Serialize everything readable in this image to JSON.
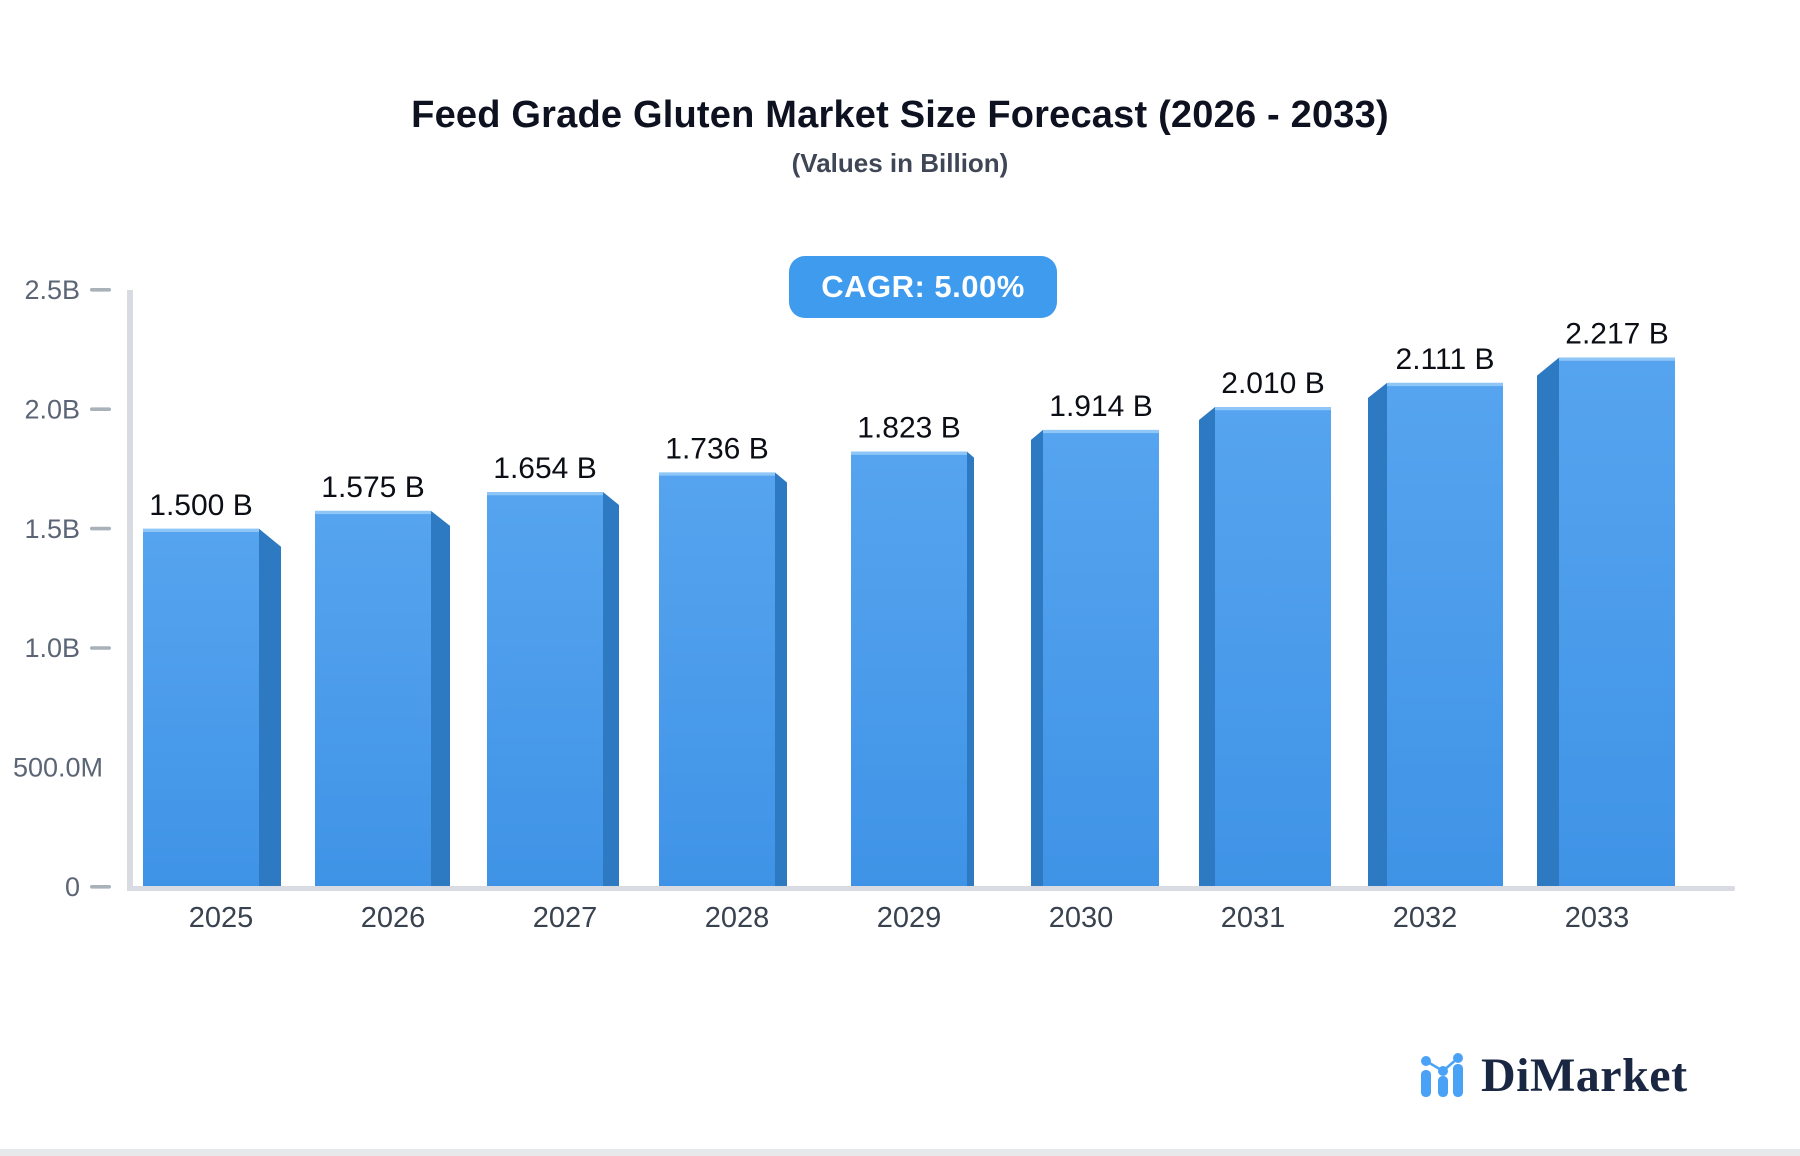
{
  "title": "Feed Grade Gluten Market Size Forecast (2026 - 2033)",
  "subtitle": "(Values in Billion)",
  "badge": {
    "label": "CAGR: 5.00%",
    "bg": "#3f9bee"
  },
  "chart_data": {
    "type": "bar",
    "title": "Feed Grade Gluten Market Size Forecast (2026 - 2033)",
    "subtitle": "(Values in Billion)",
    "categories": [
      "2025",
      "2026",
      "2027",
      "2028",
      "2029",
      "2030",
      "2031",
      "2032",
      "2033"
    ],
    "values": [
      1.5,
      1.575,
      1.654,
      1.736,
      1.823,
      1.914,
      2.01,
      2.111,
      2.217
    ],
    "value_labels": [
      "1.500 B",
      "1.575 B",
      "1.654 B",
      "1.736 B",
      "1.823 B",
      "1.914 B",
      "2.010 B",
      "2.111 B",
      "2.217 B"
    ],
    "unit": "Billion",
    "xlabel": "",
    "ylabel": "",
    "ylim": [
      0,
      2.5
    ],
    "yticks": [
      {
        "label": "0",
        "value": 0.0
      },
      {
        "label": "500.0M",
        "value": 0.5
      },
      {
        "label": "1.0B",
        "value": 1.0
      },
      {
        "label": "1.5B",
        "value": 1.5
      },
      {
        "label": "2.0B",
        "value": 2.0
      },
      {
        "label": "2.5B",
        "value": 2.5
      }
    ],
    "grid": false,
    "legend": null,
    "bar_face_top_color": "#56a4ef",
    "bar_face_bottom_color": "#3f93e6",
    "bar_side_color": "#2d7ac3",
    "bar_top_highlight": "#8ec6f7",
    "axis_line_color": "#d8dce2",
    "tick_color": "#a9b1ba",
    "y_label_color": "#5c6575",
    "x_label_color": "#39424f",
    "value_label_color": "#0b0e15"
  },
  "logo": {
    "text": "DiMarket",
    "icon": "mini-bar-line-chart-icon",
    "text_color": "#1a2742",
    "icon_color": "#4aa2f7"
  }
}
